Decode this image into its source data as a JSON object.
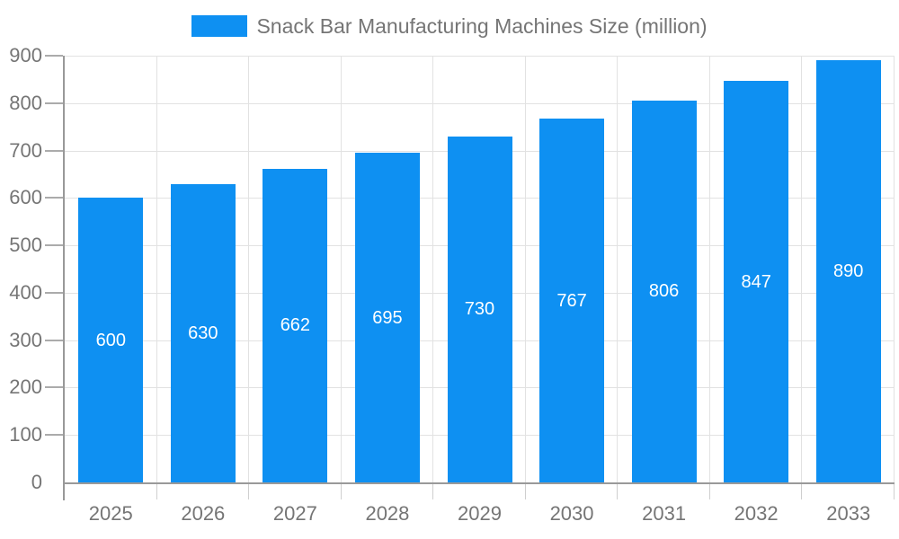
{
  "chart_data": {
    "type": "bar",
    "title": "",
    "legend": "Snack Bar Manufacturing Machines Size (million)",
    "legend_position": "top",
    "categories": [
      "2025",
      "2026",
      "2027",
      "2028",
      "2029",
      "2030",
      "2031",
      "2032",
      "2033"
    ],
    "values": [
      600,
      630,
      662,
      695,
      730,
      767,
      806,
      847,
      890
    ],
    "xlabel": "",
    "ylabel": "",
    "ylim": [
      0,
      900
    ],
    "ytick_step": 100,
    "ytick_labels": [
      "0",
      "100",
      "200",
      "300",
      "400",
      "500",
      "600",
      "700",
      "800",
      "900"
    ],
    "grid": true,
    "bar_value_labels_inside": true,
    "colors": {
      "bar": "#0e90f2",
      "bar_value_label": "#ffffff",
      "axis_text": "#757575",
      "legend_text": "#757575",
      "gridline": "#e2e2e2",
      "axis_line": "#999999",
      "tick": "#cfcfcf"
    }
  }
}
